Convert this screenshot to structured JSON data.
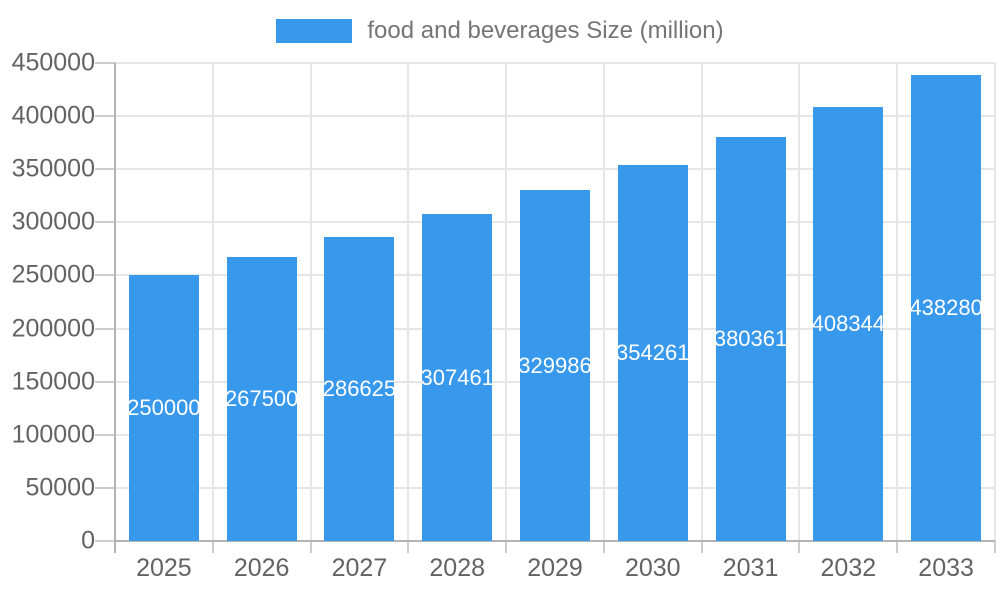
{
  "chart_data": {
    "type": "bar",
    "title": "",
    "legend": "food and beverages Size (million)",
    "legend_position": "top-center",
    "categories": [
      "2025",
      "2026",
      "2027",
      "2028",
      "2029",
      "2030",
      "2031",
      "2032",
      "2033"
    ],
    "series": [
      {
        "name": "food and beverages Size (million)",
        "values": [
          250000,
          267500,
          286625,
          307461,
          329986,
          354261,
          380361,
          408344,
          438280
        ]
      }
    ],
    "bar_labels": [
      "250000",
      "267500",
      "286625",
      "307461",
      "329986",
      "354261",
      "380361",
      "408344",
      "438280"
    ],
    "xlabel": "",
    "ylabel": "",
    "ylim": [
      0,
      450000
    ],
    "yticks": [
      0,
      50000,
      100000,
      150000,
      200000,
      250000,
      300000,
      350000,
      400000,
      450000
    ],
    "ytick_labels": [
      "0",
      "50000",
      "100000",
      "150000",
      "200000",
      "250000",
      "300000",
      "350000",
      "400000",
      "450000"
    ],
    "grid": true,
    "colors": {
      "bar": "#3898ec",
      "bar_label_text": "#ffffff",
      "gridline": "#e6e6e6",
      "axis_line": "#b3b3b3",
      "tick": "#cccccc",
      "axis_label_text": "#636363",
      "legend_text": "#757575",
      "background": "#ffffff"
    }
  }
}
